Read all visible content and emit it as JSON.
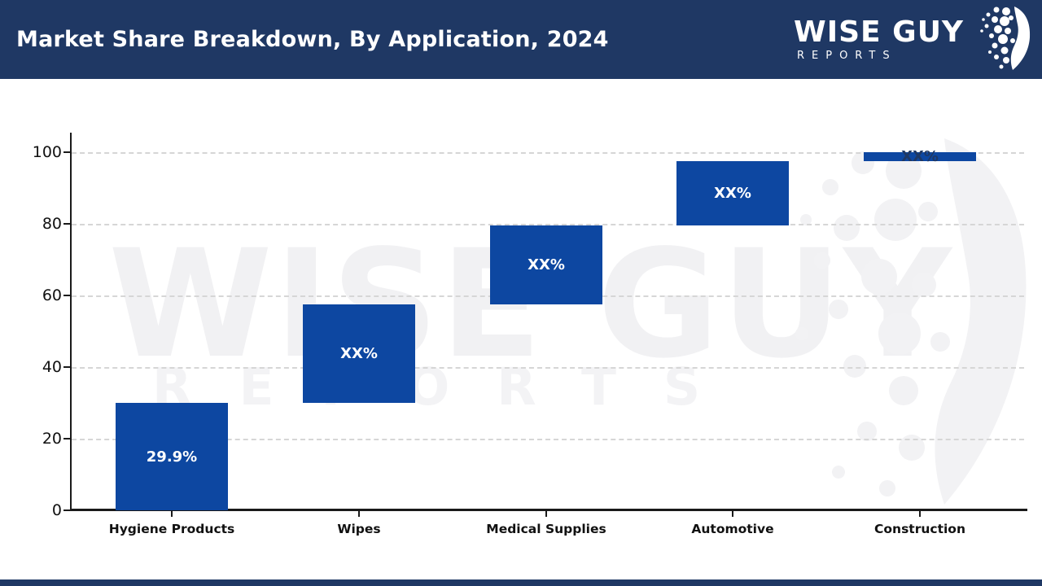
{
  "header": {
    "title": "Market Share Breakdown, By Application, 2024",
    "logo_line1": "WISE GUY",
    "logo_line2": "REPORTS"
  },
  "watermark": {
    "line1": "WISE GUY",
    "line2": "REPORTS"
  },
  "colors": {
    "header_bg": "#1f3864",
    "bar": "#0d47a1",
    "label_on_bar": "#ffffff",
    "label_dark": "#1f3864",
    "gridline": "#d6d6d6",
    "axis": "#1a1a1a"
  },
  "chart_data": {
    "type": "bar",
    "subtype": "waterfall",
    "title": "Market Share Breakdown, By Application, 2024",
    "categories": [
      "Hygiene Products",
      "Wipes",
      "Medical Supplies",
      "Automotive",
      "Construction"
    ],
    "segments": [
      {
        "category": "Hygiene Products",
        "start": 0,
        "end": 29.9,
        "label": "29.9%",
        "label_color": "#ffffff"
      },
      {
        "category": "Wipes",
        "start": 29.9,
        "end": 57.5,
        "label": "XX%",
        "label_color": "#ffffff"
      },
      {
        "category": "Medical Supplies",
        "start": 57.5,
        "end": 79.5,
        "label": "XX%",
        "label_color": "#ffffff"
      },
      {
        "category": "Automotive",
        "start": 79.5,
        "end": 97.5,
        "label": "XX%",
        "label_color": "#ffffff"
      },
      {
        "category": "Construction",
        "start": 97.5,
        "end": 100,
        "label": "XX%",
        "label_color": "#1f3864"
      }
    ],
    "y_ticks": [
      0,
      20,
      40,
      60,
      80,
      100
    ],
    "ylim": [
      0,
      105
    ],
    "xlabel": "",
    "ylabel": "",
    "grid": "dashed horizontal",
    "legend": "none",
    "bar_color": "#0d47a1"
  }
}
